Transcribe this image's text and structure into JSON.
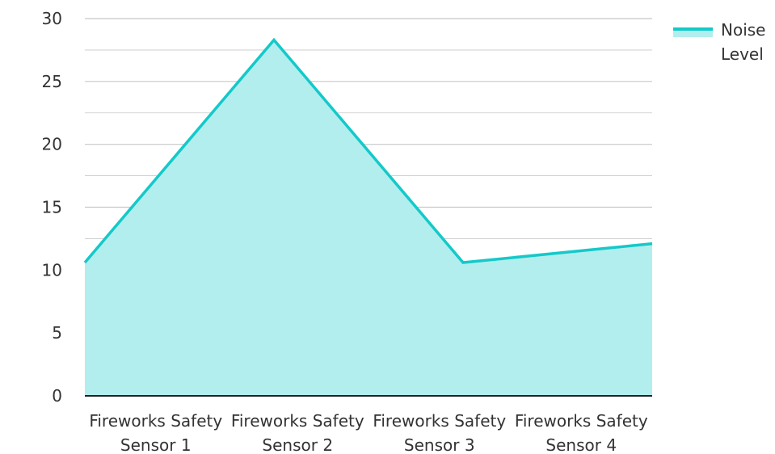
{
  "chart_data": {
    "type": "area",
    "categories": [
      [
        "Fireworks Safety",
        "Sensor 1"
      ],
      [
        "Fireworks Safety",
        "Sensor 2"
      ],
      [
        "Fireworks Safety",
        "Sensor 3"
      ],
      [
        "Fireworks Safety",
        "Sensor 4"
      ]
    ],
    "series": [
      {
        "name": [
          "Noise",
          "Level"
        ],
        "values": [
          10.6,
          28.3,
          10.6,
          12.1
        ]
      }
    ],
    "ylim": [
      0,
      30
    ],
    "yticks": [
      0,
      5,
      10,
      15,
      20,
      25,
      30
    ],
    "grid": true,
    "legend": "top-right",
    "colors": {
      "line": "#14C9C9",
      "fill": "#B2EEEE",
      "grid": "#C8C8C8",
      "axis": "#222222"
    }
  }
}
